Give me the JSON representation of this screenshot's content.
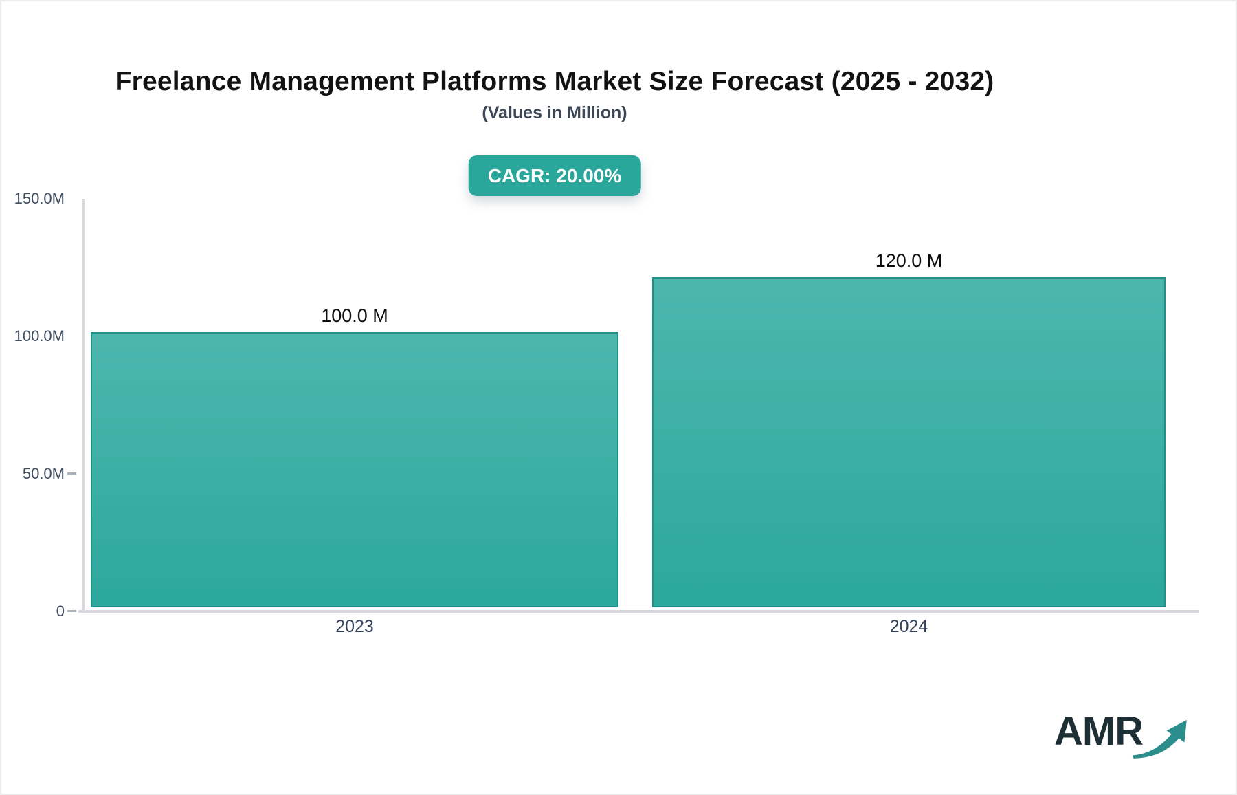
{
  "header": {
    "title": "Freelance Management Platforms Market Size Forecast (2025 - 2032)",
    "subtitle": "(Values in Million)",
    "cagr_label": "CAGR: 20.00%"
  },
  "chart_data": {
    "type": "bar",
    "title": "Freelance Management Platforms Market Size Forecast (2025 - 2032)",
    "subtitle": "(Values in Million)",
    "cagr_percent": "20.00%",
    "categories": [
      "2023",
      "2024"
    ],
    "values": [
      100.0,
      120.0
    ],
    "value_labels": [
      "100.0 M",
      "120.0 M"
    ],
    "unit": "Million",
    "xlabel": "",
    "ylabel": "",
    "ylim": [
      0,
      150
    ],
    "yticks": [
      {
        "label": "150.0M",
        "value": 150
      },
      {
        "label": "100.0M",
        "value": 100
      },
      {
        "label": "50.0M",
        "value": 50
      },
      {
        "label": "0",
        "value": 0
      }
    ],
    "grid": false,
    "legend_position": "none",
    "colors": {
      "bar_top": "#4db6ad",
      "bar_bottom": "#2ba89b",
      "bar_border": "#1f9187",
      "badge_bg": "#2aa79b",
      "axis_line": "#d7d9de",
      "accent_teal": "#2aa79b"
    }
  },
  "logo": {
    "text": "AMR"
  }
}
